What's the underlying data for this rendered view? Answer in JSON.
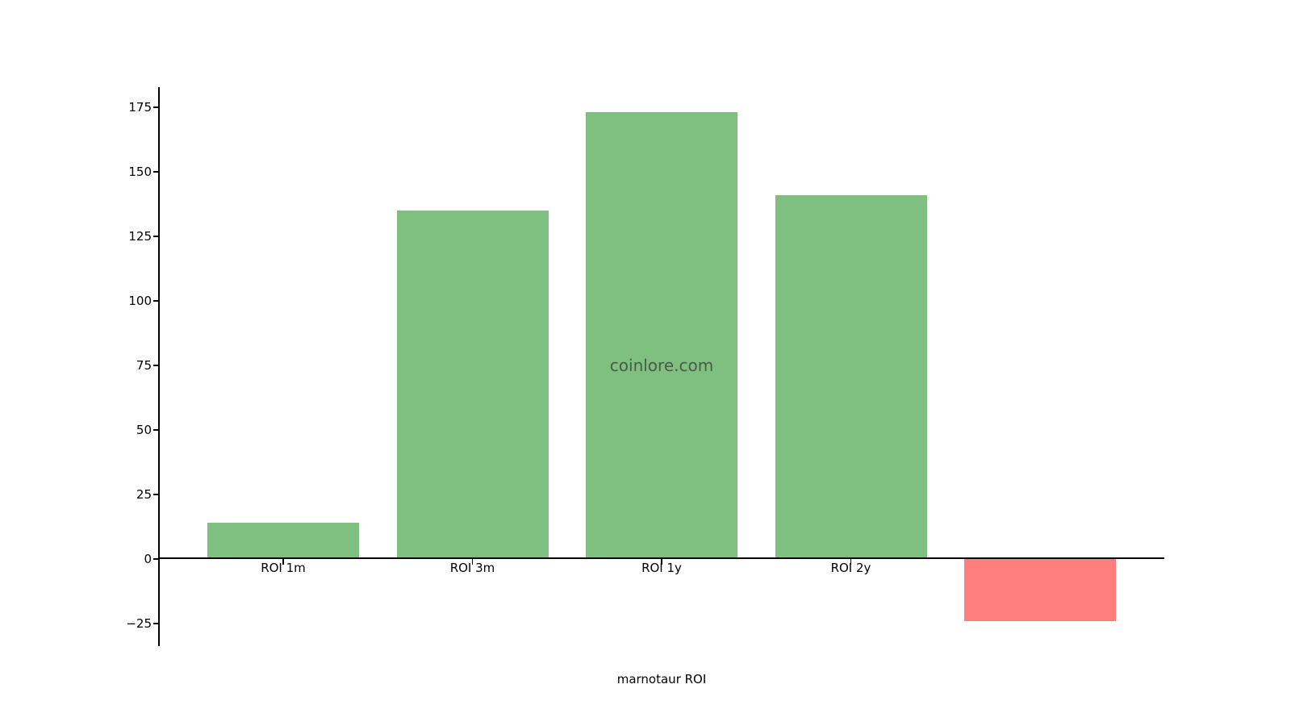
{
  "page": {
    "background_color": "#ffffff"
  },
  "chart_data": {
    "type": "bar",
    "title": "marnotaur ROI",
    "watermark": "coinlore.com",
    "categories": [
      "ROI 1m",
      "ROI 3m",
      "ROI 1y",
      "ROI 2y",
      ""
    ],
    "values": [
      14,
      135,
      173,
      141,
      -24
    ],
    "series": [
      {
        "name": "marnotaur ROI",
        "values": [
          14,
          135,
          173,
          141,
          -24
        ]
      }
    ],
    "bar_colors": [
      "#7fbf7f",
      "#7fbf7f",
      "#7fbf7f",
      "#7fbf7f",
      "#ff7f7f"
    ],
    "positive_color": "#7fbf7f",
    "negative_color": "#ff7f7f",
    "y_ticks": [
      {
        "value": 175,
        "label": "175"
      },
      {
        "value": 150,
        "label": "150"
      },
      {
        "value": 125,
        "label": "125"
      },
      {
        "value": 100,
        "label": "100"
      },
      {
        "value": 75,
        "label": "75"
      },
      {
        "value": 50,
        "label": "50"
      },
      {
        "value": 25,
        "label": "25"
      },
      {
        "value": 0,
        "label": "0"
      },
      {
        "value": -25,
        "label": "−25"
      }
    ],
    "ylim": [
      -33.9,
      182.9
    ],
    "xlabel": "",
    "ylabel": "",
    "grid": false,
    "legend": null,
    "axis_color": "#000000",
    "text_color": "#000000"
  }
}
